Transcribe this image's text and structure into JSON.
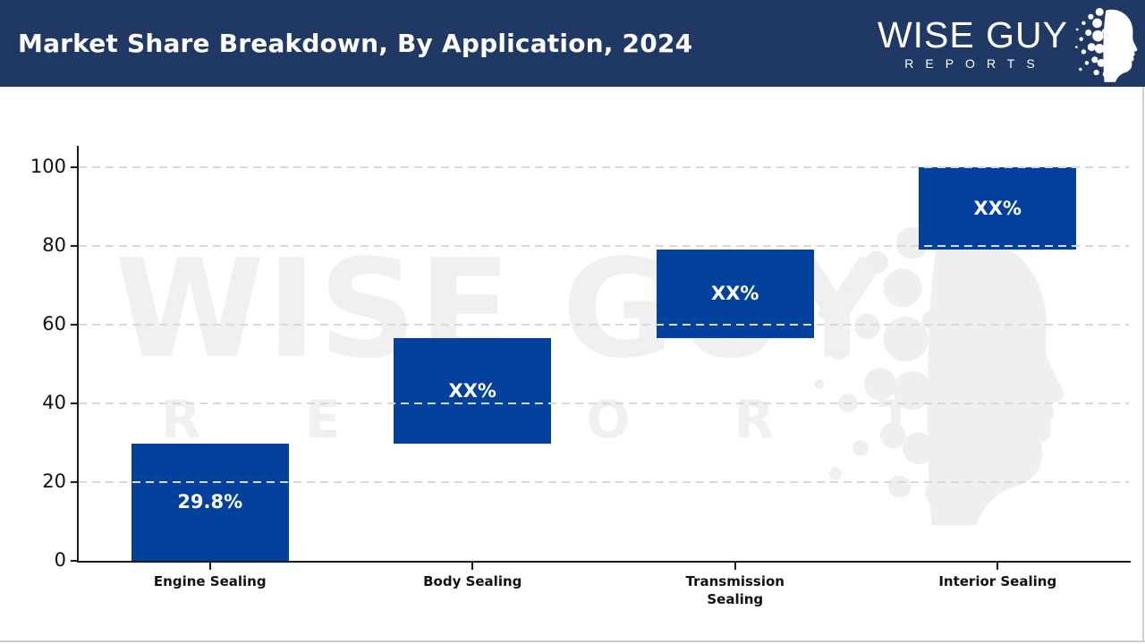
{
  "header": {
    "title": "Market Share Breakdown, By Application, 2024",
    "logo": {
      "wordmark": "WISE GUY",
      "subtext": "REPORTS"
    }
  },
  "watermark": {
    "wordmark": "WISE GUY",
    "subtext": "R E P O R T S"
  },
  "chart_data": {
    "type": "bar",
    "subtype": "waterfall",
    "title": "Market Share Breakdown, By Application, 2024",
    "categories": [
      "Engine Sealing",
      "Body Sealing",
      "Transmission Sealing",
      "Interior Sealing"
    ],
    "segments": [
      {
        "category": "Engine Sealing",
        "start": 0,
        "end": 29.8,
        "label": "29.8%"
      },
      {
        "category": "Body Sealing",
        "start": 29.8,
        "end": 56.5,
        "label": "XX%"
      },
      {
        "category": "Transmission Sealing",
        "start": 56.5,
        "end": 79.2,
        "label": "XX%"
      },
      {
        "category": "Interior Sealing",
        "start": 79.2,
        "end": 100,
        "label": "XX%"
      }
    ],
    "y_ticks": [
      0,
      20,
      40,
      60,
      80,
      100
    ],
    "ylim": [
      0,
      105
    ],
    "xlabel": "",
    "ylabel": "",
    "grid": "horizontal-dashed",
    "legend": "none"
  },
  "colors": {
    "header_bg": "#1F3864",
    "bar": "#04419C",
    "bar_label": "#FFFFFF",
    "watermark": "#F0F0F2",
    "grid": "#D9D9D9",
    "axis": "#1A1A1A",
    "text": "#111111",
    "border": "#CFCFCF"
  }
}
